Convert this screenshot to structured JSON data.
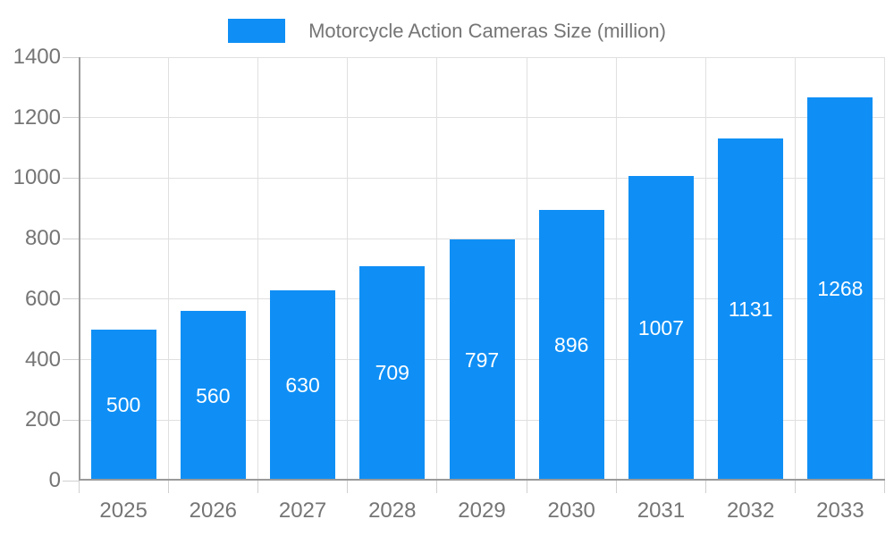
{
  "chart_data": {
    "type": "bar",
    "title": "Motorcycle Action Cameras Size (million)",
    "categories": [
      "2025",
      "2026",
      "2027",
      "2028",
      "2029",
      "2030",
      "2031",
      "2032",
      "2033"
    ],
    "values": [
      500,
      560,
      630,
      709,
      797,
      896,
      1007,
      1131,
      1268
    ],
    "xlabel": "",
    "ylabel": "",
    "ylim": [
      0,
      1400
    ],
    "yticks": [
      0,
      200,
      400,
      600,
      800,
      1000,
      1200,
      1400
    ],
    "grid": true,
    "legend_position": "top-center",
    "value_labels": "inside-center",
    "colors": {
      "bar": "#0f8ff5",
      "bar_label": "#ffffff",
      "axis_text": "#757575",
      "axis_line": "#9a9a9a",
      "gridline": "#e0e0e0",
      "tick": "#d0d0d0",
      "background": "#ffffff"
    }
  }
}
